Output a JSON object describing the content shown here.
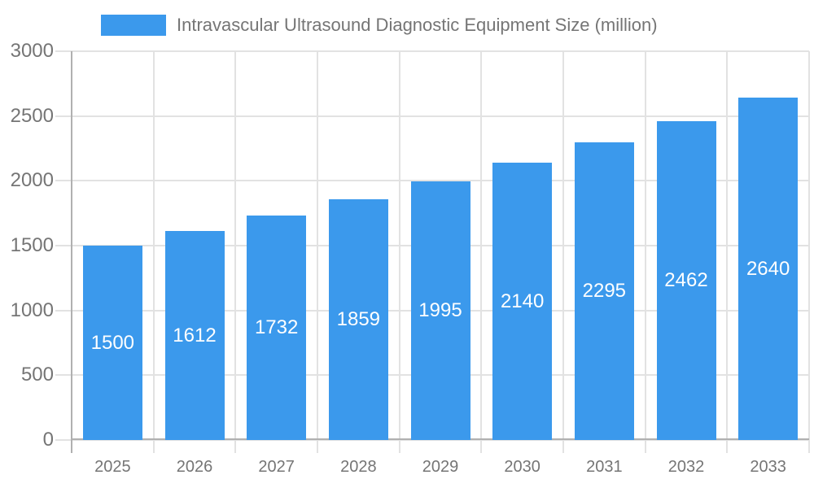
{
  "legend": {
    "label": "Intravascular Ultrasound Diagnostic Equipment Size (million)"
  },
  "colors": {
    "bar": "#3B99EC",
    "grid": "#E2E2E2",
    "axis": "#B0B0B0",
    "tick_label": "#757575",
    "legend_text": "#757575",
    "value_label": "#FFFFFF",
    "background": "#FFFFFF"
  },
  "chart_data": {
    "type": "bar",
    "title": "Intravascular Ultrasound Diagnostic Equipment Size (million)",
    "categories": [
      "2025",
      "2026",
      "2027",
      "2028",
      "2029",
      "2030",
      "2031",
      "2032",
      "2033"
    ],
    "values": [
      1500,
      1612,
      1732,
      1859,
      1995,
      2140,
      2295,
      2462,
      2640
    ],
    "xlabel": "",
    "ylabel": "",
    "ylim": [
      0,
      3000
    ],
    "yticks": [
      0,
      500,
      1000,
      1500,
      2000,
      2500,
      3000
    ],
    "grid": true,
    "legend_position": "top",
    "value_label_position": "inside-center"
  }
}
